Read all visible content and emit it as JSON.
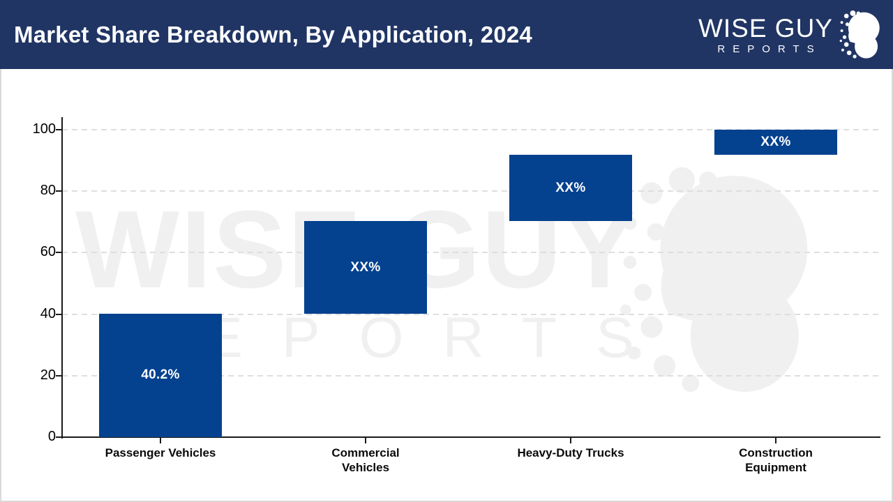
{
  "header": {
    "title": "Market Share Breakdown, By Application, 2024",
    "brand": {
      "line1": "WISE GUY",
      "line2": "REPORTS"
    }
  },
  "watermark": {
    "line1": "WISE GUY",
    "line2": "REPORTS"
  },
  "colors": {
    "header_bg": "#203564",
    "bar": "#04418f",
    "bar_label": "#ffffff",
    "grid": "#dedede",
    "axis": "#1a1a1a",
    "watermark": "#f0f0f1"
  },
  "chart_data": {
    "type": "bar",
    "subtype": "waterfall-stacked",
    "title": "Market Share Breakdown, By Application, 2024",
    "xlabel": "",
    "ylabel": "",
    "ylim": [
      0,
      100
    ],
    "yticks": [
      0,
      20,
      40,
      60,
      80,
      100
    ],
    "grid": "horizontal-dashed",
    "legend": "none",
    "bar_color": "#04418f",
    "categories": [
      "Passenger Vehicles",
      "Commercial Vehicles",
      "Heavy-Duty Trucks",
      "Construction Equipment"
    ],
    "category_lines": [
      [
        "Passenger Vehicles"
      ],
      [
        "Commercial",
        "Vehicles"
      ],
      [
        "Heavy-Duty Trucks"
      ],
      [
        "Construction",
        "Equipment"
      ]
    ],
    "segments": [
      {
        "category": "Passenger Vehicles",
        "start": 0,
        "end": 40.2,
        "label": "40.2%"
      },
      {
        "category": "Commercial Vehicles",
        "start": 40.2,
        "end": 70.2,
        "label": "XX%"
      },
      {
        "category": "Heavy-Duty Trucks",
        "start": 70.2,
        "end": 91.8,
        "label": "XX%"
      },
      {
        "category": "Construction Equipment",
        "start": 91.8,
        "end": 100,
        "label": "XX%"
      }
    ]
  }
}
